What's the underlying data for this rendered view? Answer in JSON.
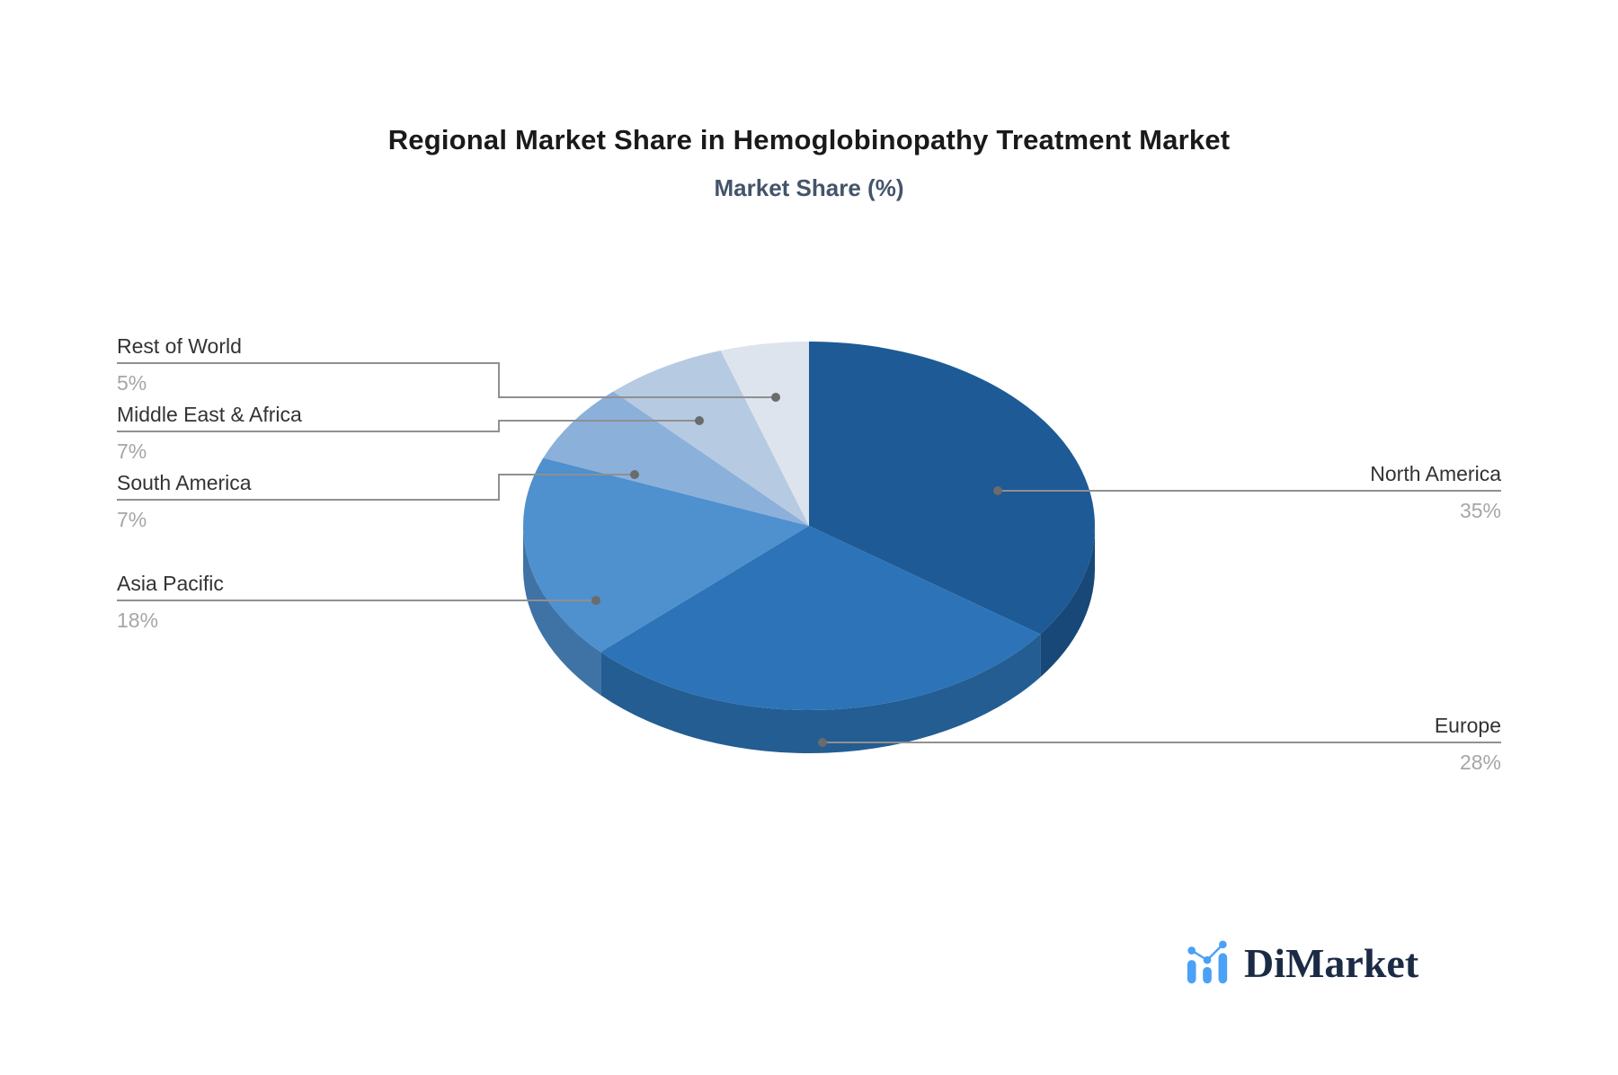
{
  "page": {
    "background": "#ffffff"
  },
  "header": {
    "title": "Regional Market Share in Hemoglobinopathy Treatment Market",
    "subtitle": "Market Share (%)"
  },
  "chart_data": {
    "type": "pie",
    "style": "3d-depth",
    "title": "Regional Market Share in Hemoglobinopathy Treatment Market",
    "subtitle": "Market Share (%)",
    "unit": "%",
    "direction": "clockwise",
    "start_angle": "12 o'clock",
    "legend_position": "none (leader-line callout labels)",
    "labels": [
      "North America",
      "Europe",
      "Asia Pacific",
      "South America",
      "Middle East & Africa",
      "Rest of World"
    ],
    "values": [
      35,
      28,
      18,
      7,
      7,
      5
    ],
    "display_values": [
      "35%",
      "28%",
      "18%",
      "7%",
      "7%",
      "5%"
    ],
    "colors": [
      "#1d5a96",
      "#2c74b7",
      "#4f90ce",
      "#8bb0da",
      "#b6cae2",
      "#dde4ee"
    ],
    "leader_line_color": "#909090",
    "leader_dot_color": "#6b6b6b",
    "label_text_color": "#333333",
    "value_text_color": "#a6a6a6"
  },
  "branding": {
    "logo_text": "DiMarket",
    "logo_icon": "bar-chart-trend-icon",
    "logo_icon_color": "#4aa1f6",
    "logo_text_color": "#1c2b45"
  }
}
